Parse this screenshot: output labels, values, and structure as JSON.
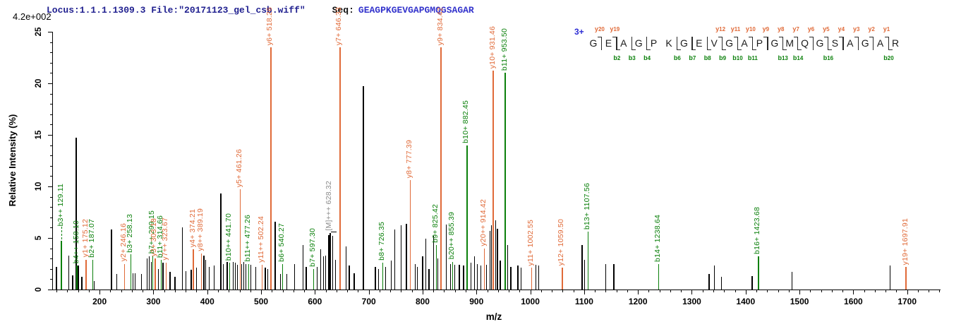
{
  "header": {
    "locus_file": "Locus:1.1.1.1309.3 File:\"20171123_gel_csb.wiff\"",
    "seq_label": "Seq:",
    "sequence": "GEAGPKGEVGAPGMQGSAGAR"
  },
  "sequence_panel": {
    "charge_label": "3+",
    "residues": "GEAGPKGEVGAPGMQGSAGAR",
    "cleavages": [
      {
        "after": 1,
        "b": null,
        "y": "y20"
      },
      {
        "after": 2,
        "b": "b2",
        "y": "y19"
      },
      {
        "after": 3,
        "b": "b3",
        "y": null
      },
      {
        "after": 4,
        "b": "b4",
        "y": null
      },
      {
        "after": 6,
        "b": "b6",
        "y": null
      },
      {
        "after": 7,
        "b": "b7",
        "y": null
      },
      {
        "after": 8,
        "b": "b8",
        "y": null
      },
      {
        "after": 9,
        "b": "b9",
        "y": "y12"
      },
      {
        "after": 10,
        "b": "b10",
        "y": "y11"
      },
      {
        "after": 11,
        "b": "b11",
        "y": "y10"
      },
      {
        "after": 12,
        "b": null,
        "y": "y9"
      },
      {
        "after": 13,
        "b": "b13",
        "y": "y8"
      },
      {
        "after": 14,
        "b": "b14",
        "y": "y7"
      },
      {
        "after": 15,
        "b": null,
        "y": "y6"
      },
      {
        "after": 16,
        "b": "b16",
        "y": "y5"
      },
      {
        "after": 17,
        "b": null,
        "y": "y4"
      },
      {
        "after": 18,
        "b": null,
        "y": "y3"
      },
      {
        "after": 19,
        "b": null,
        "y": "y2"
      },
      {
        "after": 20,
        "b": "b20",
        "y": "y1"
      }
    ]
  },
  "chart_data": {
    "type": "bar",
    "subtype": "ms2-mass-spectrum",
    "title": "",
    "xlabel": "m/z",
    "ylabel": "Relative  Intensity (%)",
    "full_scale_label": "4.2e+002",
    "xlim": [
      112,
      1762
    ],
    "ylim": [
      0,
      25
    ],
    "x_major_ticks": [
      200,
      300,
      400,
      500,
      600,
      700,
      800,
      900,
      1000,
      1100,
      1200,
      1300,
      1400,
      1500,
      1600,
      1700
    ],
    "x_minor_step": 20,
    "y_major_ticks": [
      0,
      5,
      10,
      15,
      20,
      25
    ],
    "y_minor_step": 1,
    "grid": false,
    "colors": {
      "b_ion": "#0b800b",
      "y_ion": "#e06a38",
      "unassigned": "#000000",
      "precursor_label": "#8c8c8c",
      "axis": "#000000"
    },
    "precursor_marker": {
      "mz": 635.5,
      "pct": 5.65
    },
    "peaks": [
      {
        "mz": 120.0,
        "pct": 2.2,
        "series": "unassigned",
        "label": null
      },
      {
        "mz": 129.11,
        "pct": 4.7,
        "series": "b",
        "label": "b3++ 129.11",
        "leader": 18
      },
      {
        "mz": 143.0,
        "pct": 3.3,
        "series": "unassigned",
        "label": null
      },
      {
        "mz": 150.0,
        "pct": 1.4,
        "series": "unassigned",
        "label": null
      },
      {
        "mz": 156.5,
        "pct": 14.7,
        "series": "unassigned",
        "label": null
      },
      {
        "mz": 158.1,
        "pct": 2.3,
        "series": "b",
        "label": "b4++ 158.10"
      },
      {
        "mz": 160.5,
        "pct": 2.3,
        "series": "unassigned",
        "label": null
      },
      {
        "mz": 167.0,
        "pct": 1.2,
        "series": "unassigned",
        "label": null
      },
      {
        "mz": 174.0,
        "pct": 1.9,
        "series": "unassigned",
        "label": null
      },
      {
        "mz": 175.12,
        "pct": 2.9,
        "series": "y",
        "label": "y1+ 175.12"
      },
      {
        "mz": 187.07,
        "pct": 2.9,
        "series": "b",
        "label": "b2+ 187.07"
      },
      {
        "mz": 190.0,
        "pct": 0.8,
        "series": "unassigned",
        "label": null
      },
      {
        "mz": 222.0,
        "pct": 5.8,
        "series": "unassigned",
        "label": null
      },
      {
        "mz": 232.0,
        "pct": 1.5,
        "series": "unassigned",
        "label": null
      },
      {
        "mz": 246.16,
        "pct": 2.5,
        "series": "y",
        "label": "y2+ 246.16"
      },
      {
        "mz": 258.13,
        "pct": 3.4,
        "series": "b",
        "label": "b3+ 258.13"
      },
      {
        "mz": 262.0,
        "pct": 1.6,
        "series": "unassigned",
        "label": null
      },
      {
        "mz": 266.0,
        "pct": 1.6,
        "series": "unassigned",
        "label": null
      },
      {
        "mz": 278.0,
        "pct": 1.5,
        "series": "unassigned",
        "label": null
      },
      {
        "mz": 288.0,
        "pct": 3.0,
        "series": "unassigned",
        "label": null
      },
      {
        "mz": 292.0,
        "pct": 3.2,
        "series": "unassigned",
        "label": null
      },
      {
        "mz": 296.0,
        "pct": 2.7,
        "series": "unassigned",
        "label": null
      },
      {
        "mz": 299.15,
        "pct": 3.3,
        "series": "b",
        "label": "b7++ 299.15"
      },
      {
        "mz": 303.18,
        "pct": 3.0,
        "series": "y",
        "label": "y3+ 303.18"
      },
      {
        "mz": 309.0,
        "pct": 2.0,
        "series": "unassigned",
        "label": null
      },
      {
        "mz": 314.66,
        "pct": 2.9,
        "series": "b",
        "label": "b11+ 314.66"
      },
      {
        "mz": 318.0,
        "pct": 2.6,
        "series": "unassigned",
        "label": null
      },
      {
        "mz": 323.67,
        "pct": 2.6,
        "series": "y",
        "label": "y7++ 323.67"
      },
      {
        "mz": 331.0,
        "pct": 1.7,
        "series": "unassigned",
        "label": null
      },
      {
        "mz": 340.0,
        "pct": 1.2,
        "series": "unassigned",
        "label": null
      },
      {
        "mz": 354.0,
        "pct": 6.0,
        "series": "unassigned",
        "label": null
      },
      {
        "mz": 360.0,
        "pct": 1.8,
        "series": "unassigned",
        "label": null
      },
      {
        "mz": 370.0,
        "pct": 1.9,
        "series": "unassigned",
        "label": null
      },
      {
        "mz": 374.21,
        "pct": 3.9,
        "series": "y",
        "label": "y4+ 374.21"
      },
      {
        "mz": 380.0,
        "pct": 2.1,
        "series": "unassigned",
        "label": null
      },
      {
        "mz": 389.19,
        "pct": 3.5,
        "series": "y",
        "label": "y8++ 389.19"
      },
      {
        "mz": 394.0,
        "pct": 3.3,
        "series": "unassigned",
        "label": null
      },
      {
        "mz": 397.0,
        "pct": 2.9,
        "series": "unassigned",
        "label": null
      },
      {
        "mz": 404.0,
        "pct": 2.2,
        "series": "unassigned",
        "label": null
      },
      {
        "mz": 413.0,
        "pct": 2.3,
        "series": "unassigned",
        "label": null
      },
      {
        "mz": 425.0,
        "pct": 9.3,
        "series": "unassigned",
        "label": null
      },
      {
        "mz": 430.0,
        "pct": 2.5,
        "series": "unassigned",
        "label": null
      },
      {
        "mz": 437.0,
        "pct": 2.7,
        "series": "unassigned",
        "label": null
      },
      {
        "mz": 441.7,
        "pct": 2.6,
        "series": "b",
        "label": "b10++ 441.70"
      },
      {
        "mz": 448.0,
        "pct": 2.7,
        "series": "unassigned",
        "label": null
      },
      {
        "mz": 452.0,
        "pct": 2.6,
        "series": "unassigned",
        "label": null
      },
      {
        "mz": 456.0,
        "pct": 2.4,
        "series": "unassigned",
        "label": null
      },
      {
        "mz": 461.26,
        "pct": 9.7,
        "series": "y",
        "label": "y5+ 461.26"
      },
      {
        "mz": 464.0,
        "pct": 2.5,
        "series": "unassigned",
        "label": null
      },
      {
        "mz": 468.0,
        "pct": 2.7,
        "series": "unassigned",
        "label": null
      },
      {
        "mz": 472.0,
        "pct": 2.5,
        "series": "unassigned",
        "label": null
      },
      {
        "mz": 477.26,
        "pct": 2.5,
        "series": "b",
        "label": "b11++ 477.26"
      },
      {
        "mz": 481.0,
        "pct": 2.4,
        "series": "unassigned",
        "label": null
      },
      {
        "mz": 490.0,
        "pct": 2.2,
        "series": "unassigned",
        "label": null
      },
      {
        "mz": 502.24,
        "pct": 2.4,
        "series": "y",
        "label": "y11++ 502.24"
      },
      {
        "mz": 508.0,
        "pct": 2.1,
        "series": "unassigned",
        "label": null
      },
      {
        "mz": 512.0,
        "pct": 2.0,
        "series": "unassigned",
        "label": null
      },
      {
        "mz": 518.26,
        "pct": 23.5,
        "series": "y",
        "label": "y6+ 518.26"
      },
      {
        "mz": 526.0,
        "pct": 6.6,
        "series": "unassigned",
        "label": null
      },
      {
        "mz": 536.0,
        "pct": 1.5,
        "series": "unassigned",
        "label": null
      },
      {
        "mz": 540.27,
        "pct": 2.5,
        "series": "b",
        "label": "b6+ 540.27"
      },
      {
        "mz": 548.0,
        "pct": 1.5,
        "series": "unassigned",
        "label": null
      },
      {
        "mz": 562.0,
        "pct": 2.5,
        "series": "unassigned",
        "label": null
      },
      {
        "mz": 578.0,
        "pct": 4.3,
        "series": "unassigned",
        "label": null
      },
      {
        "mz": 584.0,
        "pct": 2.2,
        "series": "unassigned",
        "label": null
      },
      {
        "mz": 597.3,
        "pct": 2.0,
        "series": "b",
        "label": "b7+ 597.30"
      },
      {
        "mz": 604.0,
        "pct": 2.2,
        "series": "unassigned",
        "label": null
      },
      {
        "mz": 611.0,
        "pct": 3.9,
        "series": "unassigned",
        "label": null
      },
      {
        "mz": 616.0,
        "pct": 3.2,
        "series": "unassigned",
        "label": null
      },
      {
        "mz": 620.0,
        "pct": 3.3,
        "series": "unassigned",
        "label": null
      },
      {
        "mz": 626.0,
        "pct": 5.3,
        "series": "unassigned",
        "label": null
      },
      {
        "mz": 628.32,
        "pct": 5.5,
        "series": "precursor",
        "label": "[M]+++ 628.32"
      },
      {
        "mz": 633.0,
        "pct": 5.2,
        "series": "unassigned",
        "label": null
      },
      {
        "mz": 638.0,
        "pct": 2.9,
        "series": "unassigned",
        "label": null
      },
      {
        "mz": 646.33,
        "pct": 23.5,
        "series": "y",
        "label": "y7+ 646.33"
      },
      {
        "mz": 658.0,
        "pct": 4.2,
        "series": "unassigned",
        "label": null
      },
      {
        "mz": 664.0,
        "pct": 2.3,
        "series": "unassigned",
        "label": null
      },
      {
        "mz": 673.0,
        "pct": 1.6,
        "series": "unassigned",
        "label": null
      },
      {
        "mz": 690.0,
        "pct": 19.7,
        "series": "unassigned",
        "label": null
      },
      {
        "mz": 712.0,
        "pct": 2.2,
        "series": "unassigned",
        "label": null
      },
      {
        "mz": 718.0,
        "pct": 2.0,
        "series": "unassigned",
        "label": null
      },
      {
        "mz": 726.35,
        "pct": 2.6,
        "series": "b",
        "label": "b8+ 726.35"
      },
      {
        "mz": 731.0,
        "pct": 2.2,
        "series": "unassigned",
        "label": null
      },
      {
        "mz": 742.0,
        "pct": 2.8,
        "series": "unassigned",
        "label": null
      },
      {
        "mz": 748.0,
        "pct": 5.8,
        "series": "unassigned",
        "label": null
      },
      {
        "mz": 760.0,
        "pct": 6.2,
        "series": "unassigned",
        "label": null
      },
      {
        "mz": 770.0,
        "pct": 6.4,
        "series": "unassigned",
        "label": null
      },
      {
        "mz": 777.39,
        "pct": 10.6,
        "series": "y",
        "label": "y8+ 777.39"
      },
      {
        "mz": 786.0,
        "pct": 2.5,
        "series": "unassigned",
        "label": null
      },
      {
        "mz": 790.0,
        "pct": 2.2,
        "series": "unassigned",
        "label": null
      },
      {
        "mz": 800.0,
        "pct": 3.2,
        "series": "unassigned",
        "label": null
      },
      {
        "mz": 806.0,
        "pct": 4.9,
        "series": "unassigned",
        "label": null
      },
      {
        "mz": 812.0,
        "pct": 2.0,
        "series": "unassigned",
        "label": null
      },
      {
        "mz": 820.0,
        "pct": 5.2,
        "series": "unassigned",
        "label": null
      },
      {
        "mz": 825.42,
        "pct": 4.3,
        "series": "b",
        "label": "b9+ 825.42"
      },
      {
        "mz": 828.0,
        "pct": 3.0,
        "series": "unassigned",
        "label": null
      },
      {
        "mz": 834.42,
        "pct": 23.5,
        "series": "y",
        "label": "y9+ 834.42"
      },
      {
        "mz": 844.0,
        "pct": 6.3,
        "series": "unassigned",
        "label": null
      },
      {
        "mz": 852.0,
        "pct": 2.5,
        "series": "unassigned",
        "label": null
      },
      {
        "mz": 855.39,
        "pct": 2.7,
        "series": "b",
        "label": "b20++ 855.39"
      },
      {
        "mz": 860.0,
        "pct": 2.4,
        "series": "unassigned",
        "label": null
      },
      {
        "mz": 868.0,
        "pct": 2.4,
        "series": "unassigned",
        "label": null
      },
      {
        "mz": 876.0,
        "pct": 2.3,
        "series": "unassigned",
        "label": null
      },
      {
        "mz": 882.45,
        "pct": 14.0,
        "series": "b",
        "label": "b10+ 882.45"
      },
      {
        "mz": 890.0,
        "pct": 2.6,
        "series": "unassigned",
        "label": null
      },
      {
        "mz": 896.0,
        "pct": 3.2,
        "series": "unassigned",
        "label": null
      },
      {
        "mz": 902.0,
        "pct": 2.5,
        "series": "unassigned",
        "label": null
      },
      {
        "mz": 908.0,
        "pct": 2.3,
        "series": "unassigned",
        "label": null
      },
      {
        "mz": 914.42,
        "pct": 4.0,
        "series": "y",
        "label": "y20++ 914.42"
      },
      {
        "mz": 919.0,
        "pct": 2.4,
        "series": "unassigned",
        "label": null
      },
      {
        "mz": 925.0,
        "pct": 5.7,
        "series": "unassigned",
        "label": null
      },
      {
        "mz": 928.0,
        "pct": 6.2,
        "series": "unassigned",
        "label": null
      },
      {
        "mz": 931.46,
        "pct": 21.2,
        "series": "y",
        "label": "y10+ 931.46"
      },
      {
        "mz": 936.0,
        "pct": 6.7,
        "series": "unassigned",
        "label": null
      },
      {
        "mz": 939.0,
        "pct": 5.9,
        "series": "unassigned",
        "label": null
      },
      {
        "mz": 944.0,
        "pct": 2.8,
        "series": "unassigned",
        "label": null
      },
      {
        "mz": 953.5,
        "pct": 21.0,
        "series": "b",
        "label": "b11+ 953.50"
      },
      {
        "mz": 958.0,
        "pct": 4.3,
        "series": "unassigned",
        "label": null
      },
      {
        "mz": 964.0,
        "pct": 2.2,
        "series": "unassigned",
        "label": null
      },
      {
        "mz": 977.0,
        "pct": 2.3,
        "series": "unassigned",
        "label": null
      },
      {
        "mz": 983.0,
        "pct": 2.1,
        "series": "unassigned",
        "label": null
      },
      {
        "mz": 1002.55,
        "pct": 2.1,
        "series": "y",
        "label": "y11+ 1002.55"
      },
      {
        "mz": 1010.0,
        "pct": 2.4,
        "series": "unassigned",
        "label": null
      },
      {
        "mz": 1016.0,
        "pct": 2.3,
        "series": "unassigned",
        "label": null
      },
      {
        "mz": 1059.5,
        "pct": 2.1,
        "series": "y",
        "label": "y12+ 1059.50"
      },
      {
        "mz": 1096.0,
        "pct": 4.3,
        "series": "unassigned",
        "label": null
      },
      {
        "mz": 1101.0,
        "pct": 2.9,
        "series": "unassigned",
        "label": null
      },
      {
        "mz": 1107.56,
        "pct": 5.6,
        "series": "b",
        "label": "b13+ 1107.56"
      },
      {
        "mz": 1140.0,
        "pct": 2.5,
        "series": "unassigned",
        "label": null
      },
      {
        "mz": 1155.0,
        "pct": 2.5,
        "series": "unassigned",
        "label": null
      },
      {
        "mz": 1238.64,
        "pct": 2.5,
        "series": "b",
        "label": "b14+ 1238.64"
      },
      {
        "mz": 1332.0,
        "pct": 1.5,
        "series": "unassigned",
        "label": null
      },
      {
        "mz": 1342.0,
        "pct": 2.3,
        "series": "unassigned",
        "label": null
      },
      {
        "mz": 1355.0,
        "pct": 1.2,
        "series": "unassigned",
        "label": null
      },
      {
        "mz": 1412.0,
        "pct": 1.3,
        "series": "unassigned",
        "label": null
      },
      {
        "mz": 1423.68,
        "pct": 3.2,
        "series": "b",
        "label": "b16+ 1423.68"
      },
      {
        "mz": 1486.0,
        "pct": 1.7,
        "series": "unassigned",
        "label": null
      },
      {
        "mz": 1668.0,
        "pct": 2.3,
        "series": "unassigned",
        "label": null
      },
      {
        "mz": 1697.91,
        "pct": 2.2,
        "series": "y",
        "label": "y19+ 1697.91"
      }
    ]
  }
}
